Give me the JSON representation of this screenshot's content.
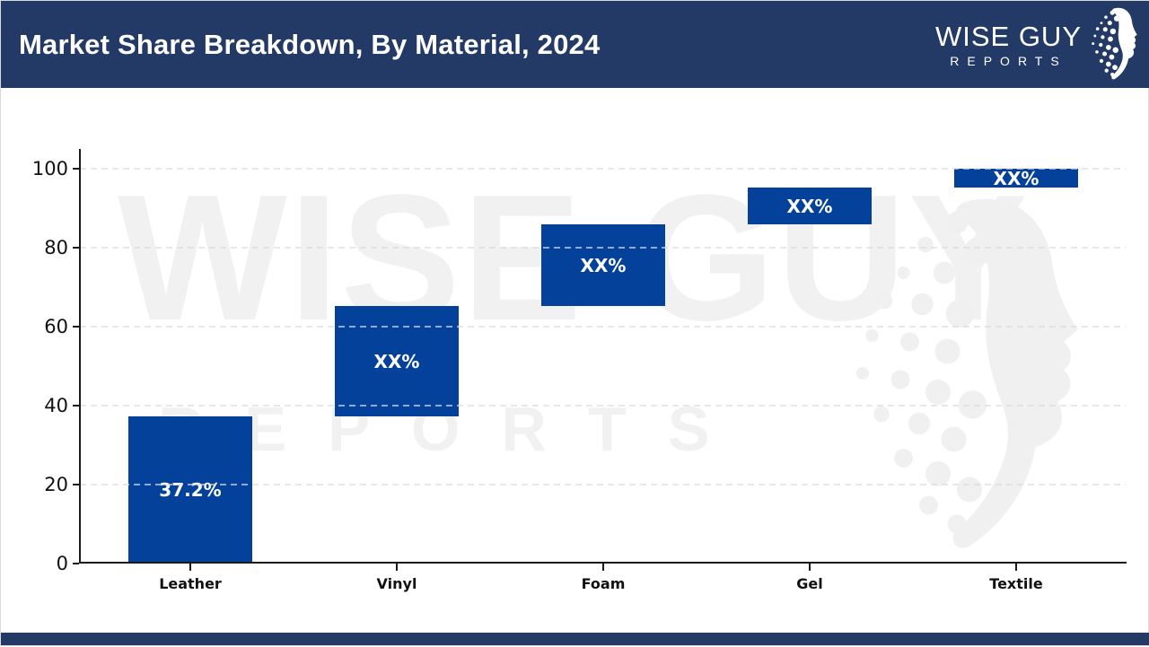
{
  "header": {
    "title": "Market Share Breakdown, By Material, 2024",
    "logo": {
      "line1": "WISE GUY",
      "line2": "REPORTS"
    }
  },
  "watermark": {
    "line1": "WISE GUY",
    "line2": "REPORTS"
  },
  "chart_data": {
    "type": "bar",
    "subtype": "waterfall",
    "title": "Market Share Breakdown, By Material, 2024",
    "categories": [
      "Leather",
      "Vinyl",
      "Foam",
      "Gel",
      "Textile"
    ],
    "segments": [
      {
        "category": "Leather",
        "start": 0,
        "end": 37.2,
        "label": "37.2%"
      },
      {
        "category": "Vinyl",
        "start": 37.2,
        "end": 65.2,
        "label": "XX%"
      },
      {
        "category": "Foam",
        "start": 65.2,
        "end": 85.9,
        "label": "XX%"
      },
      {
        "category": "Gel",
        "start": 85.9,
        "end": 95.2,
        "label": "XX%"
      },
      {
        "category": "Textile",
        "start": 95.2,
        "end": 100,
        "label": "XX%"
      }
    ],
    "yticks": [
      0,
      20,
      40,
      60,
      80,
      100
    ],
    "ylim": [
      0,
      105
    ],
    "xlabel": "",
    "ylabel": "",
    "legend": "none",
    "grid": "horizontal-dashed",
    "bar_color": "#04419b",
    "bar_label_color": "#ffffff",
    "axis_color": "#1a1a1a",
    "grid_color": "#dcdcdc"
  },
  "colors": {
    "header_bg": "#233a66",
    "footer_bg": "#233a66",
    "watermark": "#f1f1f1",
    "page_bg": "#ffffff"
  }
}
